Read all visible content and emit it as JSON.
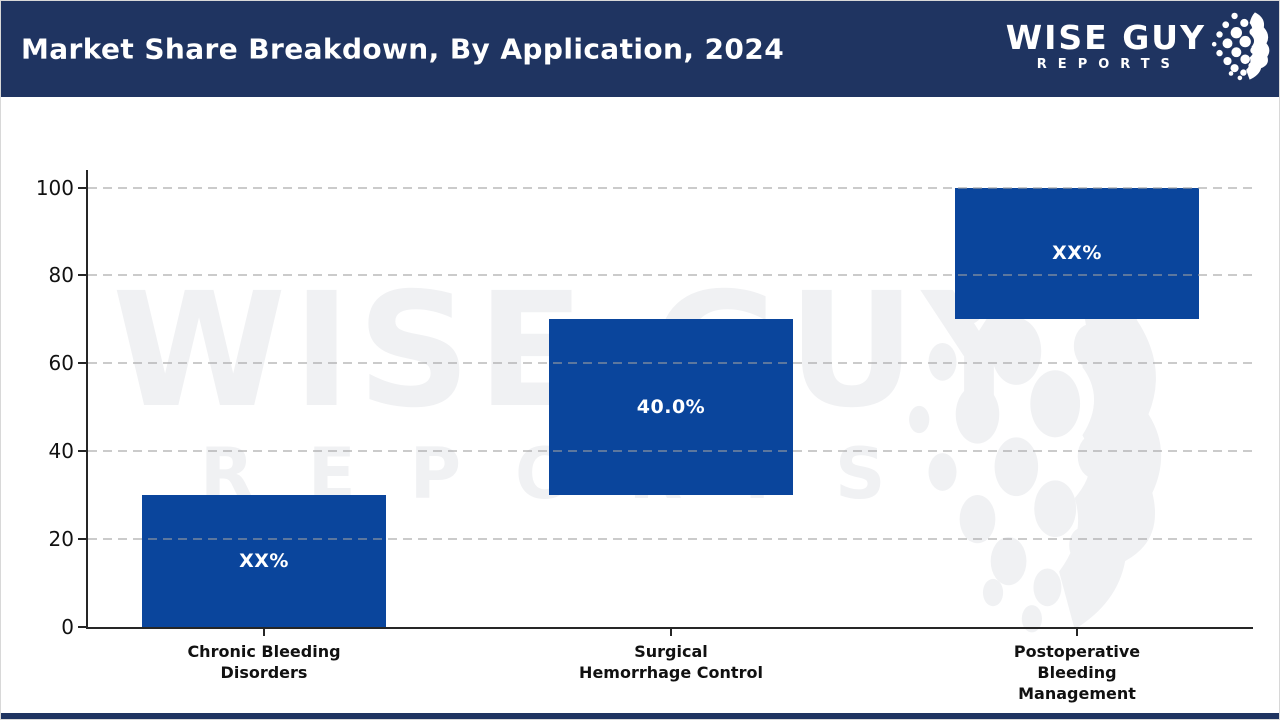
{
  "header": {
    "title": "Market Share Breakdown, By Application, 2024",
    "logo": {
      "name": "WISE GUY",
      "sub": "REPORTS"
    }
  },
  "watermark": {
    "name": "WISE GUY",
    "sub": "REPORTS"
  },
  "colors": {
    "header_bg": "#1f3461",
    "bar": "#0a459c",
    "axis": "#262626",
    "grid": "#c8c8c8",
    "watermark": "#f0f1f3",
    "title_text": "#ffffff",
    "label_text": "#111111",
    "bar_label_text": "#ffffff"
  },
  "chart_data": {
    "type": "bar",
    "variant": "floating-waterfall",
    "title": "Market Share Breakdown, By Application, 2024",
    "categories": [
      "Chronic Bleeding Disorders",
      "Surgical Hemorrhage Control",
      "Postoperative Bleeding Management"
    ],
    "category_label_lines": [
      [
        "Chronic Bleeding",
        "Disorders"
      ],
      [
        "Surgical",
        "Hemorrhage Control"
      ],
      [
        "Postoperative",
        "Bleeding",
        "Management"
      ]
    ],
    "bars": [
      {
        "category": "Chronic Bleeding Disorders",
        "start": 0,
        "end": 30,
        "label": "XX%"
      },
      {
        "category": "Surgical Hemorrhage Control",
        "start": 30,
        "end": 70,
        "label": "40.0%"
      },
      {
        "category": "Postoperative Bleeding Management",
        "start": 70,
        "end": 100,
        "label": "XX%"
      }
    ],
    "y_ticks": [
      0,
      20,
      40,
      60,
      80,
      100
    ],
    "ylim": [
      0,
      104
    ],
    "xlabel": "",
    "ylabel": "",
    "grid": "horizontal-dashed",
    "legend": "none"
  }
}
